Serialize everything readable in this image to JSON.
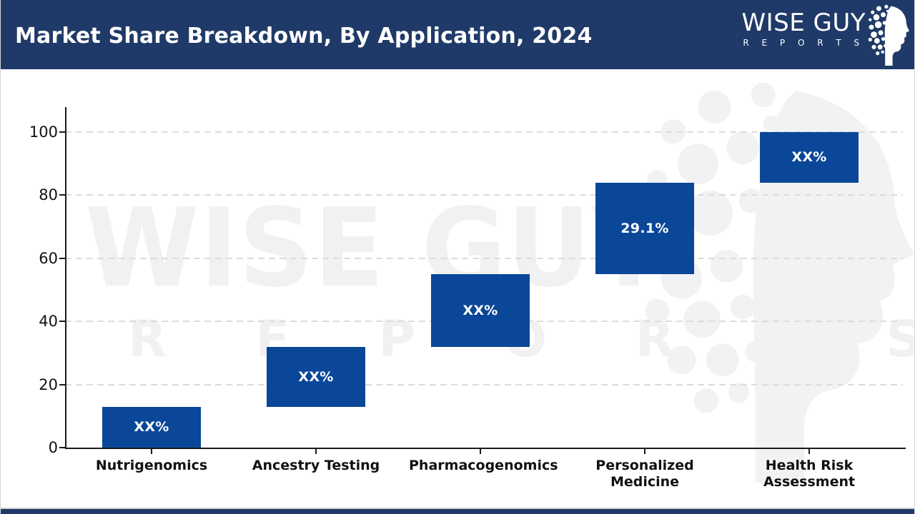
{
  "header": {
    "title": "Market Share Breakdown, By Application, 2024",
    "logo_line1": "WISE GUY",
    "logo_line2": "R E P O R T S",
    "bg_color": "#1f3a68"
  },
  "watermark": {
    "line1": "WISE GUY",
    "line2": "R E P O R T S"
  },
  "footer": {
    "bg_color": "#1f3a68"
  },
  "chart_data": {
    "type": "bar",
    "subtype": "waterfall-floating-bars",
    "title": "Market Share Breakdown, By Application, 2024",
    "categories": [
      "Nutrigenomics",
      "Ancestry Testing",
      "Pharmacogenomics",
      "Personalized\nMedicine",
      "Health Risk\nAssessment"
    ],
    "segments": [
      [
        0,
        13
      ],
      [
        13,
        32
      ],
      [
        32,
        55
      ],
      [
        55,
        84
      ],
      [
        84,
        100
      ]
    ],
    "bar_labels": [
      "XX%",
      "XX%",
      "XX%",
      "29.1%",
      "XX%"
    ],
    "yticks": [
      0,
      20,
      40,
      60,
      80,
      100
    ],
    "ylim": [
      0,
      108
    ],
    "xlabel": "",
    "ylabel": "",
    "legend": "none",
    "grid": "dashed-horizontal",
    "bar_color": "#0b4798",
    "grid_color": "#dcdcdc",
    "axis_color": "#1a1a1a",
    "bar_label_color": "#ffffff"
  }
}
